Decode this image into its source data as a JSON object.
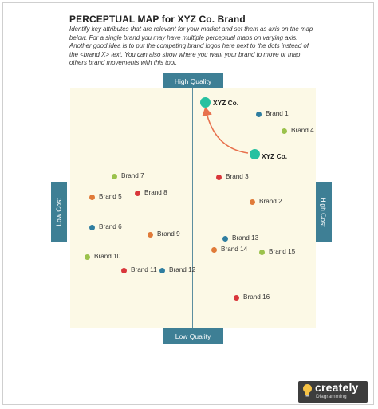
{
  "title": "PERCEPTUAL MAP for XYZ Co. Brand",
  "description": "Identify key attributes that are relevant for your market and set them as axis on the map below. For a single brand you may have multiple perceptual maps on varying axis. Another good idea is to put the competing brand logos here next to the dots instead of the <brand X> text. You can also show where you want your brand to move or map others brand movements with this tool.",
  "axes": {
    "top": "High Quality",
    "bottom": "Low Quality",
    "left": "Low Cost",
    "right": "High Cost"
  },
  "colors": {
    "blue": "#2f7ea0",
    "green": "#9bc24c",
    "orange": "#e07b39",
    "red": "#d9373b",
    "teal": "#27c1a0",
    "arrow": "#e8714d",
    "axis_tab": "#3e7f95",
    "plot_bg": "#fcf9e6"
  },
  "xyz": {
    "target_label": "XYZ Co.",
    "current_label": "XYZ Co.",
    "movement": "current-to-target"
  },
  "brands": [
    {
      "label": "Brand 1",
      "color": "blue"
    },
    {
      "label": "Brand 4",
      "color": "green"
    },
    {
      "label": "Brand 3",
      "color": "red"
    },
    {
      "label": "Brand 7",
      "color": "green"
    },
    {
      "label": "Brand 8",
      "color": "red"
    },
    {
      "label": "Brand 5",
      "color": "orange"
    },
    {
      "label": "Brand 2",
      "color": "orange"
    },
    {
      "label": "Brand 6",
      "color": "blue"
    },
    {
      "label": "Brand 9",
      "color": "orange"
    },
    {
      "label": "Brand 13",
      "color": "blue"
    },
    {
      "label": "Brand 14",
      "color": "orange"
    },
    {
      "label": "Brand 15",
      "color": "green"
    },
    {
      "label": "Brand 10",
      "color": "green"
    },
    {
      "label": "Brand 11",
      "color": "red"
    },
    {
      "label": "Brand 12",
      "color": "blue"
    },
    {
      "label": "Brand 16",
      "color": "red"
    }
  ],
  "logo": {
    "name": "creately",
    "tagline": "Diagramming",
    "icon": "lightbulb-icon"
  }
}
